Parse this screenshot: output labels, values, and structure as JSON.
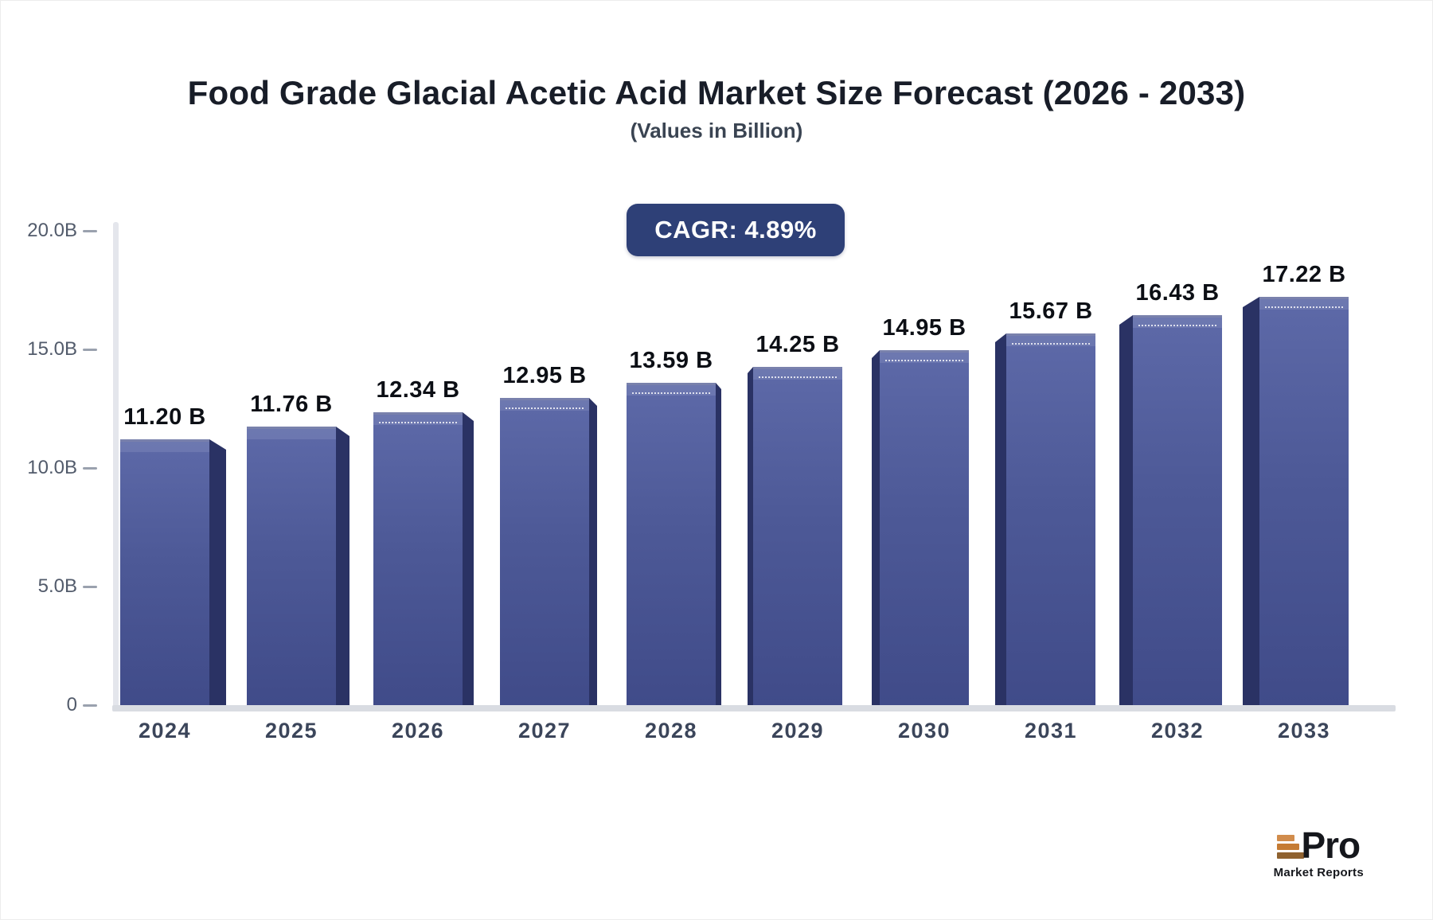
{
  "header": {
    "title": "Food Grade Glacial Acetic Acid Market Size Forecast (2026 - 2033)",
    "subtitle": "(Values in Billion)"
  },
  "badge": {
    "label": "CAGR: 4.89%",
    "bg_color": "#2e4077",
    "text_color": "#ffffff"
  },
  "chart_data": {
    "type": "bar",
    "title": "Food Grade Glacial Acetic Acid Market Size Forecast (2026 - 2033)",
    "subtitle": "(Values in Billion)",
    "cagr": "4.89%",
    "categories": [
      "2024",
      "2025",
      "2026",
      "2027",
      "2028",
      "2029",
      "2030",
      "2031",
      "2032",
      "2033"
    ],
    "values": [
      11.2,
      11.76,
      12.34,
      12.95,
      13.59,
      14.25,
      14.95,
      15.67,
      16.43,
      17.22
    ],
    "value_labels": [
      "11.20 B",
      "11.76 B",
      "12.34 B",
      "12.95 B",
      "13.59 B",
      "14.25 B",
      "14.95 B",
      "15.67 B",
      "16.43 B",
      "17.22 B"
    ],
    "ylim": [
      0,
      20
    ],
    "yticks": [
      {
        "value": 20,
        "label": "20.0B"
      },
      {
        "value": 15,
        "label": "15.0B"
      },
      {
        "value": 10,
        "label": "10.0B"
      },
      {
        "value": 5,
        "label": "5.0B"
      },
      {
        "value": 0,
        "label": "0"
      }
    ],
    "forecast_start_category": "2026",
    "grid": false,
    "legend": false,
    "bar_front_top_color": "#5d69a8",
    "bar_front_bottom_color": "#404b89",
    "bar_side_color": "#2a3264",
    "axis_color": "#e4e6ec",
    "platform_color": "#d9dce2",
    "label_color": "#0c0f15",
    "tick_label_color": "#525b6b"
  },
  "logo": {
    "name": "Pro",
    "tagline": "Market Reports",
    "bar_colors": [
      "#d18c4c",
      "#c57b33",
      "#8f6230"
    ]
  }
}
